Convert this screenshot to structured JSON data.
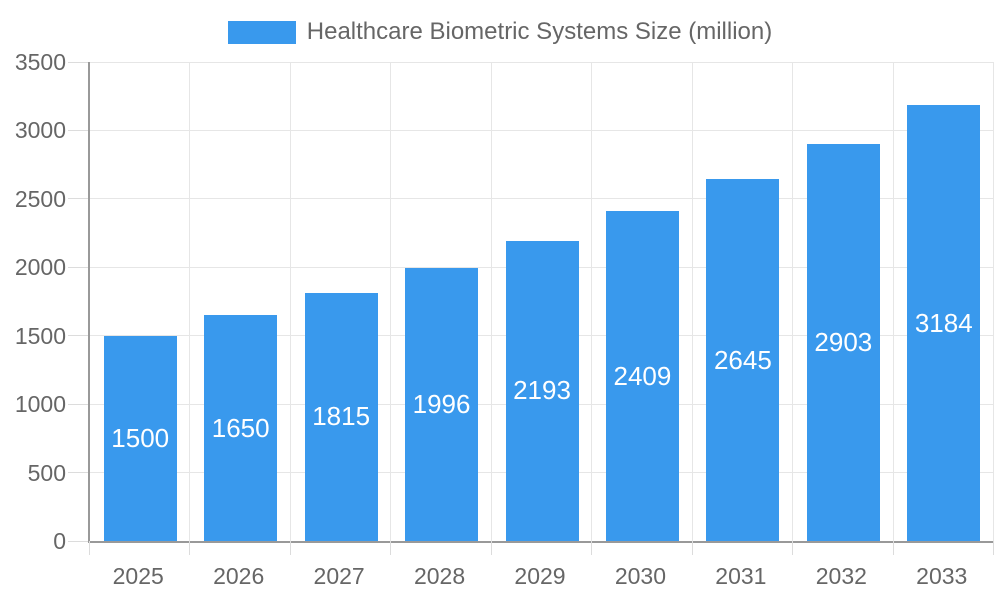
{
  "legend": {
    "label": "Healthcare Biometric Systems Size (million)"
  },
  "chart_data": {
    "type": "bar",
    "title": "Healthcare Biometric Systems Size (million)",
    "categories": [
      "2025",
      "2026",
      "2027",
      "2028",
      "2029",
      "2030",
      "2031",
      "2032",
      "2033"
    ],
    "values": [
      1500,
      1650,
      1815,
      1996,
      2193,
      2409,
      2645,
      2903,
      3184
    ],
    "xlabel": "",
    "ylabel": "",
    "ylim": [
      0,
      3500
    ],
    "yticks": [
      0,
      500,
      1000,
      1500,
      2000,
      2500,
      3000,
      3500
    ],
    "grid": true,
    "legend_position": "top-center",
    "bar_color": "#3999ed",
    "bar_label_color": "#ffffff",
    "grid_color": "#e6e6e6",
    "axis_color": "#999999",
    "tick_color": "#dcdcdc",
    "text_color": "#666666",
    "background_color": "#ffffff"
  }
}
